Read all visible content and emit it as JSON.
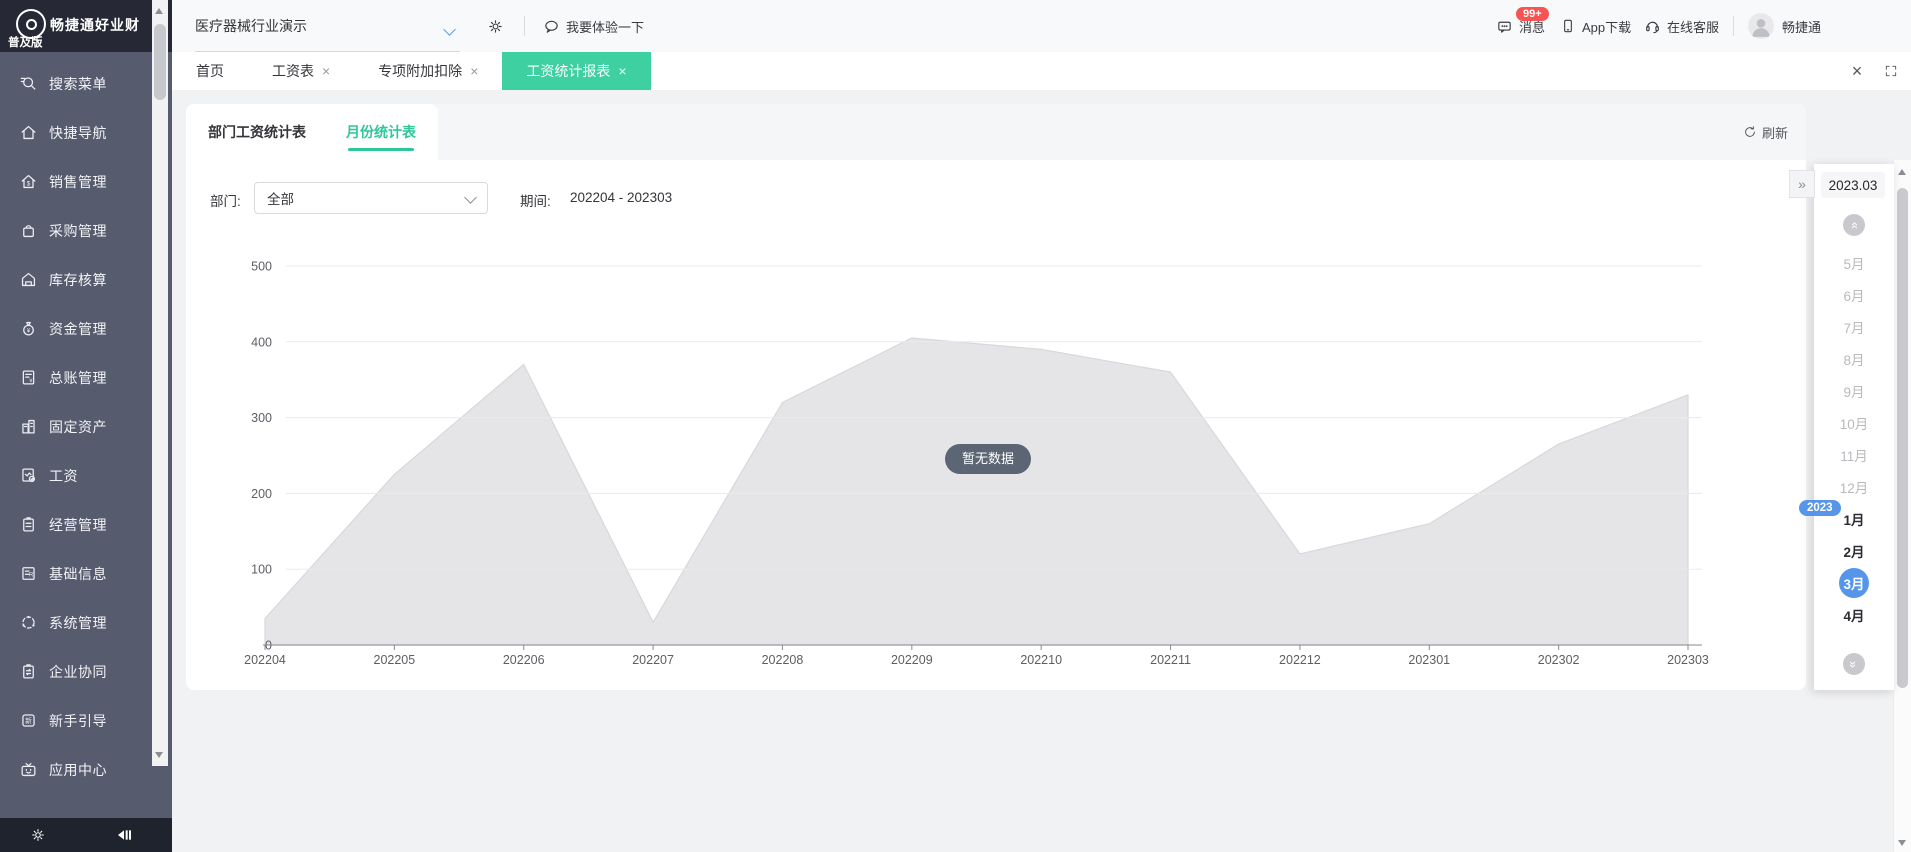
{
  "topbar": {
    "logo_title": "畅捷通好业财",
    "logo_subtitle": "普及版",
    "org_selector": "医疗器械行业演示",
    "experience_label": "我要体验一下",
    "messages_label": "消息",
    "messages_badge": "99+",
    "app_download_label": "App下载",
    "online_service_label": "在线客服",
    "username": "畅捷通"
  },
  "ui": {
    "tab_close_glyph": "×",
    "window_close_glyph": "×",
    "panel_collapse_glyph": "»",
    "panel_chevron_glyph": "»"
  },
  "tabs": [
    {
      "name": "home",
      "label": "首页",
      "closable": false,
      "active": false
    },
    {
      "name": "salary-sheet",
      "label": "工资表",
      "closable": true,
      "active": false
    },
    {
      "name": "special-deduction",
      "label": "专项附加扣除",
      "closable": true,
      "active": false
    },
    {
      "name": "salary-report",
      "label": "工资统计报表",
      "closable": true,
      "active": true
    }
  ],
  "subtabs": [
    {
      "name": "dept-salary-stats",
      "label": "部门工资统计表",
      "active": false
    },
    {
      "name": "monthly-stats",
      "label": "月份统计表",
      "active": true
    }
  ],
  "toolbar": {
    "refresh_label": "刷新"
  },
  "filters": {
    "department_label": "部门:",
    "department_value": "全部",
    "period_label": "期间:",
    "period_value": "202204 - 202303"
  },
  "chart_data": {
    "type": "area",
    "title": "",
    "xlabel": "",
    "ylabel": "",
    "categories": [
      "202204",
      "202205",
      "202206",
      "202207",
      "202208",
      "202209",
      "202210",
      "202211",
      "202212",
      "202301",
      "202302",
      "202303"
    ],
    "values": [
      35,
      225,
      370,
      30,
      320,
      405,
      390,
      360,
      120,
      160,
      265,
      330
    ],
    "ylim": [
      0,
      500
    ],
    "yticks": [
      0,
      100,
      200,
      300,
      400,
      500
    ],
    "grid": true,
    "series_color": "#e5e5e8",
    "annotation": "暂无数据"
  },
  "month_panel": {
    "current_period": "2023.03",
    "year_badge": "2023",
    "months": [
      {
        "label": "5月",
        "state": "muted"
      },
      {
        "label": "6月",
        "state": "muted"
      },
      {
        "label": "7月",
        "state": "muted"
      },
      {
        "label": "8月",
        "state": "muted"
      },
      {
        "label": "9月",
        "state": "muted"
      },
      {
        "label": "10月",
        "state": "muted"
      },
      {
        "label": "11月",
        "state": "muted"
      },
      {
        "label": "12月",
        "state": "muted"
      },
      {
        "label": "1月",
        "state": "normal"
      },
      {
        "label": "2月",
        "state": "normal"
      },
      {
        "label": "3月",
        "state": "selected"
      },
      {
        "label": "4月",
        "state": "normal"
      }
    ]
  },
  "sidebar": {
    "items": [
      {
        "name": "search",
        "label": "搜索菜单"
      },
      {
        "name": "quick-nav",
        "label": "快捷导航"
      },
      {
        "name": "sales",
        "label": "销售管理"
      },
      {
        "name": "purchase",
        "label": "采购管理"
      },
      {
        "name": "inventory",
        "label": "库存核算"
      },
      {
        "name": "funds",
        "label": "资金管理"
      },
      {
        "name": "ledger",
        "label": "总账管理"
      },
      {
        "name": "fixed-assets",
        "label": "固定资产"
      },
      {
        "name": "salary",
        "label": "工资"
      },
      {
        "name": "operations",
        "label": "经营管理"
      },
      {
        "name": "base-info",
        "label": "基础信息"
      },
      {
        "name": "system",
        "label": "系统管理"
      },
      {
        "name": "collaboration",
        "label": "企业协同"
      },
      {
        "name": "guide",
        "label": "新手引导"
      },
      {
        "name": "app-center",
        "label": "应用中心"
      }
    ]
  }
}
